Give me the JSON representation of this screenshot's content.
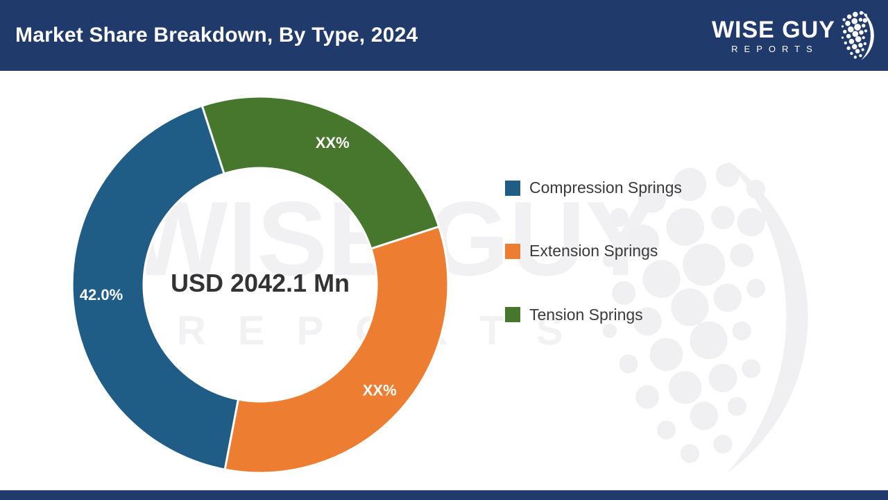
{
  "header": {
    "title": "Market Share Breakdown, By Type, 2024"
  },
  "logo": {
    "name": "WISE GUY",
    "tagline": "REPORTS"
  },
  "watermark": {
    "line1": "WISE GUY",
    "line2": "REPORTS"
  },
  "chart_data": {
    "type": "pie",
    "subtype": "donut",
    "title": "Market Share Breakdown, By Type, 2024",
    "center_label": "USD 2042.1 Mn",
    "donut_hole_ratio": 0.62,
    "start_angle_deg": 108,
    "direction": "counterclockwise",
    "legend_position": "right",
    "slice_gap_color": "#ffffff",
    "series": [
      {
        "name": "Compression Springs",
        "display_label": "42.0%",
        "value_pct": 42.0,
        "color": "#1F5C86"
      },
      {
        "name": "Extension Springs",
        "display_label": "XX%",
        "value_pct": 33.0,
        "color": "#ED7D31"
      },
      {
        "name": "Tension Springs",
        "display_label": "XX%",
        "value_pct": 25.0,
        "color": "#46772C"
      }
    ]
  },
  "colors": {
    "header_bg": "#203A6B",
    "footer_bg": "#203A6B",
    "center_text": "#333333",
    "legend_text": "#3A3A3A",
    "watermark": "#F1F1F4"
  }
}
